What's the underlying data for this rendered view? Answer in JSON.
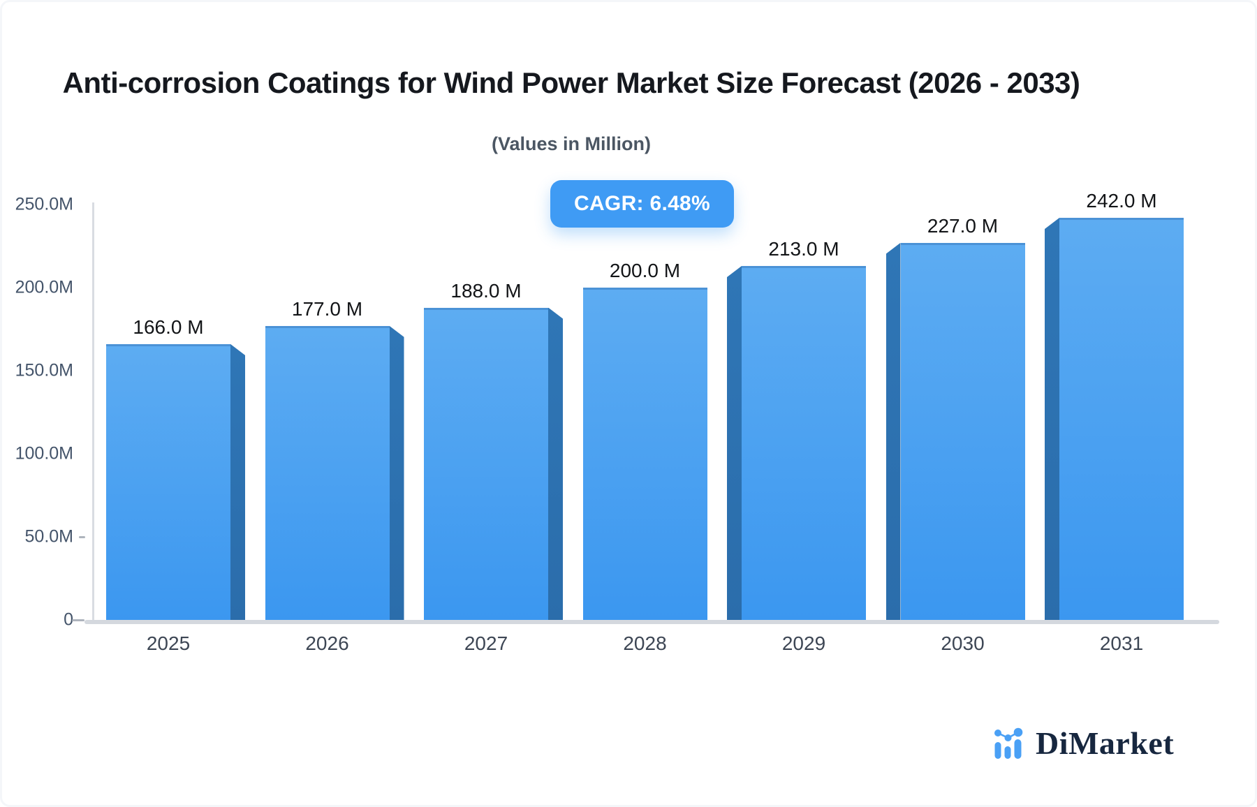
{
  "title": "Anti-corrosion Coatings for Wind Power Market Size Forecast (2026 - 2033)",
  "subtitle": "(Values in Million)",
  "badge": {
    "label": "CAGR: 6.48%"
  },
  "logo": {
    "text": "DiMarket",
    "icon": "bar-line-chart-icon"
  },
  "colors": {
    "bar_face_top": "#5dacf2",
    "bar_face_bottom": "#3b97f0",
    "bar_side": "#2e74b4",
    "badge_background": "#3f9bf4",
    "logo_navy": "#17273f",
    "axis_gray": "#d4d8de"
  },
  "chart_data": {
    "type": "bar",
    "title": "Anti-corrosion Coatings for Wind Power Market Size Forecast (2026 - 2033)",
    "subtitle": "(Values in Million)",
    "unit": "Million",
    "categories": [
      "2025",
      "2026",
      "2027",
      "2028",
      "2029",
      "2030",
      "2031"
    ],
    "values": [
      166,
      177,
      188,
      200,
      213,
      227,
      242
    ],
    "value_labels": [
      "166.0 M",
      "177.0 M",
      "188.0 M",
      "200.0 M",
      "213.0 M",
      "227.0 M",
      "242.0 M"
    ],
    "yticks": [
      {
        "label": "0",
        "value": 0
      },
      {
        "label": "50.0M",
        "value": 50
      },
      {
        "label": "100.0M",
        "value": 100
      },
      {
        "label": "150.0M",
        "value": 150
      },
      {
        "label": "200.0M",
        "value": 200
      },
      {
        "label": "250.0M",
        "value": 250
      }
    ],
    "ylim": [
      0,
      250
    ],
    "annotation": "CAGR: 6.48%",
    "grid": false,
    "legend": false,
    "bar_style": "3d-beveled"
  }
}
